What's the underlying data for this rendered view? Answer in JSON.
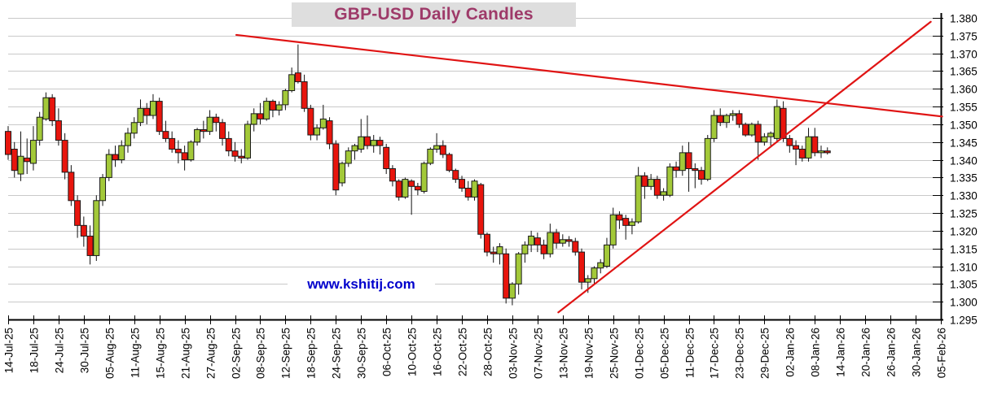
{
  "title": "GBP-USD Daily Candles",
  "watermark": "www.kshitij.com",
  "colors": {
    "background": "#ffffff",
    "up_candle": "#a3c939",
    "down_candle": "#e8150d",
    "candle_outline": "#1a1a1a",
    "wick": "#111111",
    "trendline": "#e01414",
    "grid": "#c9c9c9",
    "axis": "#000000",
    "axis_text": "#000000",
    "title_text": "#9e3a69",
    "title_bg": "#dedede",
    "watermark_text": "#0000cc"
  },
  "chart_data": {
    "type": "candlestick",
    "title": "GBP-USD Daily Candles",
    "grid": true,
    "y_axis": {
      "side": "right",
      "min": 1.295,
      "max": 1.38,
      "tick_step": 0.005,
      "labels": [
        "1.380",
        "1.375",
        "1.370",
        "1.365",
        "1.360",
        "1.355",
        "1.350",
        "1.345",
        "1.340",
        "1.335",
        "1.330",
        "1.325",
        "1.320",
        "1.315",
        "1.310",
        "1.305",
        "1.300",
        "1.295"
      ]
    },
    "x_axis": {
      "labels": [
        "14-Jul-25",
        "18-Jul-25",
        "24-Jul-25",
        "30-Jul-25",
        "05-Aug-25",
        "11-Aug-25",
        "15-Aug-25",
        "21-Aug-25",
        "27-Aug-25",
        "02-Sep-25",
        "08-Sep-25",
        "12-Sep-25",
        "18-Sep-25",
        "24-Sep-25",
        "30-Sep-25",
        "06-Oct-25",
        "10-Oct-25",
        "16-Oct-25",
        "22-Oct-25",
        "28-Oct-25",
        "03-Nov-25",
        "07-Nov-25",
        "13-Nov-25",
        "19-Nov-25",
        "25-Nov-25",
        "01-Dec-25",
        "05-Dec-25",
        "11-Dec-25",
        "17-Dec-25",
        "23-Dec-25",
        "29-Dec-25",
        "02-Jan-26",
        "08-Jan-26",
        "14-Jan-26",
        "20-Jan-26",
        "26-Jan-26",
        "30-Jan-26",
        "05-Feb-26"
      ],
      "slots_per_label": 4,
      "total_slots": 149
    },
    "candles": {
      "format": "[open, high, low, close]",
      "values": [
        [
          1.348,
          1.3495,
          1.34,
          1.3415
        ],
        [
          1.343,
          1.345,
          1.335,
          1.337
        ],
        [
          1.336,
          1.348,
          1.334,
          1.341
        ],
        [
          1.3405,
          1.346,
          1.336,
          1.3395
        ],
        [
          1.339,
          1.3495,
          1.337,
          1.3455
        ],
        [
          1.3455,
          1.3535,
          1.344,
          1.352
        ],
        [
          1.3515,
          1.359,
          1.351,
          1.3575
        ],
        [
          1.3575,
          1.3585,
          1.3495,
          1.351
        ],
        [
          1.351,
          1.3545,
          1.344,
          1.3455
        ],
        [
          1.3455,
          1.3475,
          1.3345,
          1.3365
        ],
        [
          1.3365,
          1.3385,
          1.327,
          1.3285
        ],
        [
          1.3285,
          1.33,
          1.318,
          1.3215
        ],
        [
          1.3215,
          1.324,
          1.3155,
          1.3185
        ],
        [
          1.3185,
          1.3215,
          1.3105,
          1.313
        ],
        [
          1.313,
          1.33,
          1.3115,
          1.3285
        ],
        [
          1.3285,
          1.336,
          1.327,
          1.335
        ],
        [
          1.335,
          1.343,
          1.334,
          1.3415
        ],
        [
          1.3415,
          1.344,
          1.338,
          1.34
        ],
        [
          1.34,
          1.3455,
          1.339,
          1.344
        ],
        [
          1.344,
          1.349,
          1.342,
          1.3475
        ],
        [
          1.3475,
          1.352,
          1.346,
          1.3505
        ],
        [
          1.3505,
          1.357,
          1.3495,
          1.3545
        ],
        [
          1.3545,
          1.356,
          1.35,
          1.3525
        ],
        [
          1.3525,
          1.3585,
          1.3515,
          1.3565
        ],
        [
          1.3565,
          1.3575,
          1.347,
          1.348
        ],
        [
          1.348,
          1.351,
          1.345,
          1.346
        ],
        [
          1.346,
          1.348,
          1.342,
          1.343
        ],
        [
          1.343,
          1.3455,
          1.339,
          1.342
        ],
        [
          1.342,
          1.344,
          1.337,
          1.34
        ],
        [
          1.34,
          1.3455,
          1.3395,
          1.345
        ],
        [
          1.345,
          1.349,
          1.344,
          1.3485
        ],
        [
          1.3485,
          1.351,
          1.346,
          1.348
        ],
        [
          1.348,
          1.354,
          1.347,
          1.352
        ],
        [
          1.352,
          1.353,
          1.348,
          1.3505
        ],
        [
          1.3505,
          1.3515,
          1.344,
          1.346
        ],
        [
          1.346,
          1.348,
          1.341,
          1.3425
        ],
        [
          1.3425,
          1.345,
          1.3395,
          1.341
        ],
        [
          1.341,
          1.343,
          1.339,
          1.3405
        ],
        [
          1.3405,
          1.351,
          1.34,
          1.35
        ],
        [
          1.35,
          1.3545,
          1.348,
          1.353
        ],
        [
          1.353,
          1.356,
          1.35,
          1.3515
        ],
        [
          1.3515,
          1.3575,
          1.351,
          1.3565
        ],
        [
          1.3565,
          1.357,
          1.352,
          1.354
        ],
        [
          1.354,
          1.3565,
          1.3525,
          1.3555
        ],
        [
          1.3555,
          1.36,
          1.354,
          1.3595
        ],
        [
          1.3595,
          1.366,
          1.359,
          1.364
        ],
        [
          1.3645,
          1.3725,
          1.3615,
          1.362
        ],
        [
          1.362,
          1.364,
          1.3535,
          1.3545
        ],
        [
          1.3545,
          1.3555,
          1.3455,
          1.347
        ],
        [
          1.347,
          1.35,
          1.3455,
          1.349
        ],
        [
          1.349,
          1.3555,
          1.3485,
          1.3515
        ],
        [
          1.351,
          1.352,
          1.343,
          1.3445
        ],
        [
          1.3445,
          1.3455,
          1.33,
          1.3315
        ],
        [
          1.3335,
          1.3395,
          1.3325,
          1.339
        ],
        [
          1.339,
          1.3435,
          1.338,
          1.3425
        ],
        [
          1.3425,
          1.3445,
          1.34,
          1.344
        ],
        [
          1.343,
          1.3515,
          1.342,
          1.3465
        ],
        [
          1.3465,
          1.3525,
          1.343,
          1.344
        ],
        [
          1.344,
          1.347,
          1.342,
          1.3455
        ],
        [
          1.3455,
          1.3465,
          1.3415,
          1.344
        ],
        [
          1.3435,
          1.3445,
          1.336,
          1.3375
        ],
        [
          1.3375,
          1.3385,
          1.3325,
          1.334
        ],
        [
          1.334,
          1.3345,
          1.3285,
          1.3295
        ],
        [
          1.3295,
          1.335,
          1.329,
          1.3345
        ],
        [
          1.334,
          1.3345,
          1.3245,
          1.3325
        ],
        [
          1.3325,
          1.3335,
          1.33,
          1.3315
        ],
        [
          1.3311,
          1.3395,
          1.3305,
          1.339
        ],
        [
          1.339,
          1.3435,
          1.3385,
          1.343
        ],
        [
          1.343,
          1.3475,
          1.342,
          1.344
        ],
        [
          1.344,
          1.3455,
          1.3405,
          1.3415
        ],
        [
          1.3415,
          1.342,
          1.3365,
          1.337
        ],
        [
          1.337,
          1.3375,
          1.3335,
          1.3345
        ],
        [
          1.3345,
          1.3355,
          1.331,
          1.332
        ],
        [
          1.332,
          1.334,
          1.3285,
          1.3295
        ],
        [
          1.3295,
          1.3345,
          1.3285,
          1.334
        ],
        [
          1.333,
          1.3335,
          1.3178,
          1.319
        ],
        [
          1.319,
          1.3195,
          1.3128,
          1.314
        ],
        [
          1.314,
          1.3155,
          1.311,
          1.3135
        ],
        [
          1.3135,
          1.3165,
          1.3105,
          1.3155
        ],
        [
          1.3135,
          1.315,
          1.2995,
          1.301
        ],
        [
          1.301,
          1.3055,
          1.299,
          1.305
        ],
        [
          1.305,
          1.314,
          1.302,
          1.3135
        ],
        [
          1.3135,
          1.317,
          1.311,
          1.316
        ],
        [
          1.316,
          1.32,
          1.314,
          1.3185
        ],
        [
          1.318,
          1.3195,
          1.314,
          1.316
        ],
        [
          1.316,
          1.3175,
          1.312,
          1.3135
        ],
        [
          1.3135,
          1.322,
          1.3125,
          1.3195
        ],
        [
          1.3195,
          1.3205,
          1.315,
          1.3165
        ],
        [
          1.3165,
          1.319,
          1.3155,
          1.3175
        ],
        [
          1.3175,
          1.3185,
          1.3155,
          1.317
        ],
        [
          1.317,
          1.318,
          1.313,
          1.314
        ],
        [
          1.314,
          1.315,
          1.3035,
          1.3055
        ],
        [
          1.3055,
          1.3075,
          1.3025,
          1.3065
        ],
        [
          1.3065,
          1.31,
          1.305,
          1.3095
        ],
        [
          1.3095,
          1.312,
          1.308,
          1.311
        ],
        [
          1.31,
          1.318,
          1.3095,
          1.316
        ],
        [
          1.316,
          1.3265,
          1.315,
          1.3245
        ],
        [
          1.3245,
          1.3255,
          1.3205,
          1.323
        ],
        [
          1.3235,
          1.3245,
          1.3175,
          1.3215
        ],
        [
          1.3215,
          1.3235,
          1.319,
          1.3225
        ],
        [
          1.3225,
          1.338,
          1.322,
          1.3355
        ],
        [
          1.3355,
          1.3365,
          1.329,
          1.3325
        ],
        [
          1.3325,
          1.336,
          1.3315,
          1.3345
        ],
        [
          1.3345,
          1.3355,
          1.329,
          1.33
        ],
        [
          1.33,
          1.332,
          1.3285,
          1.331
        ],
        [
          1.33,
          1.339,
          1.3295,
          1.338
        ],
        [
          1.338,
          1.3395,
          1.335,
          1.337
        ],
        [
          1.337,
          1.344,
          1.3355,
          1.342
        ],
        [
          1.342,
          1.345,
          1.331,
          1.3375
        ],
        [
          1.3375,
          1.339,
          1.332,
          1.337
        ],
        [
          1.337,
          1.338,
          1.333,
          1.3345
        ],
        [
          1.3345,
          1.347,
          1.334,
          1.346
        ],
        [
          1.346,
          1.354,
          1.345,
          1.3525
        ],
        [
          1.3525,
          1.3545,
          1.3495,
          1.3505
        ],
        [
          1.3505,
          1.353,
          1.349,
          1.3525
        ],
        [
          1.3525,
          1.354,
          1.351,
          1.353
        ],
        [
          1.353,
          1.354,
          1.349,
          1.35
        ],
        [
          1.35,
          1.3505,
          1.3465,
          1.347
        ],
        [
          1.347,
          1.3505,
          1.3465,
          1.35
        ],
        [
          1.35,
          1.351,
          1.34,
          1.345
        ],
        [
          1.345,
          1.3475,
          1.344,
          1.3465
        ],
        [
          1.3465,
          1.348,
          1.344,
          1.3475
        ],
        [
          1.346,
          1.357,
          1.345,
          1.355
        ],
        [
          1.3545,
          1.3565,
          1.345,
          1.346
        ],
        [
          1.346,
          1.347,
          1.342,
          1.344
        ],
        [
          1.344,
          1.3455,
          1.3385,
          1.343
        ],
        [
          1.343,
          1.344,
          1.3395,
          1.3405
        ],
        [
          1.3405,
          1.349,
          1.3395,
          1.3465
        ],
        [
          1.3465,
          1.349,
          1.341,
          1.342
        ],
        [
          1.342,
          1.344,
          1.3405,
          1.3425
        ],
        [
          1.3425,
          1.3435,
          1.3415,
          1.342
        ]
      ]
    },
    "trendlines": [
      {
        "name": "descending-resistance-trendline",
        "from": {
          "slot": 36.2,
          "price": 1.3752
        },
        "to": {
          "slot": 148.2,
          "price": 1.3522
        }
      },
      {
        "name": "ascending-support-trendline",
        "from": {
          "slot": 87.3,
          "price": 1.297
        },
        "to": {
          "slot": 146.4,
          "price": 1.3789
        }
      }
    ]
  }
}
